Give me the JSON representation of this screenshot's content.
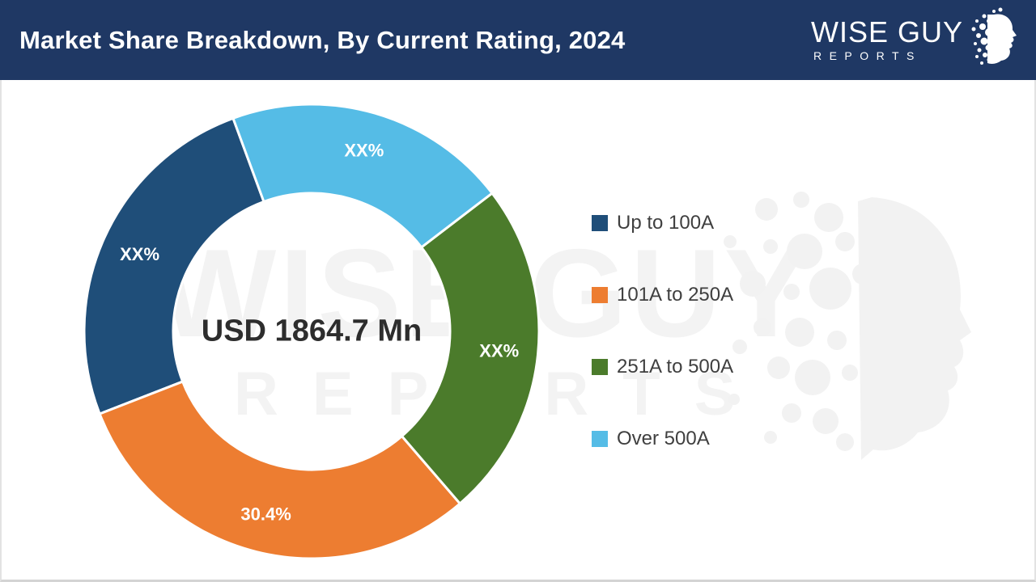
{
  "header": {
    "title": "Market Share Breakdown, By Current Rating, 2024",
    "logo": {
      "line1": "WISE GUY",
      "line2": "REPORTS"
    }
  },
  "chart_data": {
    "type": "pie",
    "subtype": "donut",
    "title": "Market Share Breakdown, By Current Rating, 2024",
    "center_label": "USD 1864.7 Mn",
    "start_angle_deg": 110.2,
    "direction": "counterclockwise",
    "inner_radius_ratio": 0.61,
    "legend_position": "right",
    "slices": [
      {
        "name": "Up to 100A",
        "label": "XX%",
        "value_pct": 25.3,
        "color": "#1F4E79"
      },
      {
        "name": "101A to 250A",
        "label": "30.4%",
        "value_pct": 30.4,
        "color": "#ED7D31"
      },
      {
        "name": "251A to 500A",
        "label": "XX%",
        "value_pct": 24.1,
        "color": "#4B7B2B"
      },
      {
        "name": "Over 500A",
        "label": "XX%",
        "value_pct": 20.2,
        "color": "#55BCE6"
      }
    ]
  },
  "watermark": {
    "line1": "WISE GUY",
    "line2": "REPORTS"
  },
  "colors": {
    "header_bg": "#1F3864",
    "watermark": "#F3F3F3",
    "page_border": "#D9D9D9",
    "center_text": "#2D2D2D",
    "legend_text": "#3F3F3F"
  }
}
